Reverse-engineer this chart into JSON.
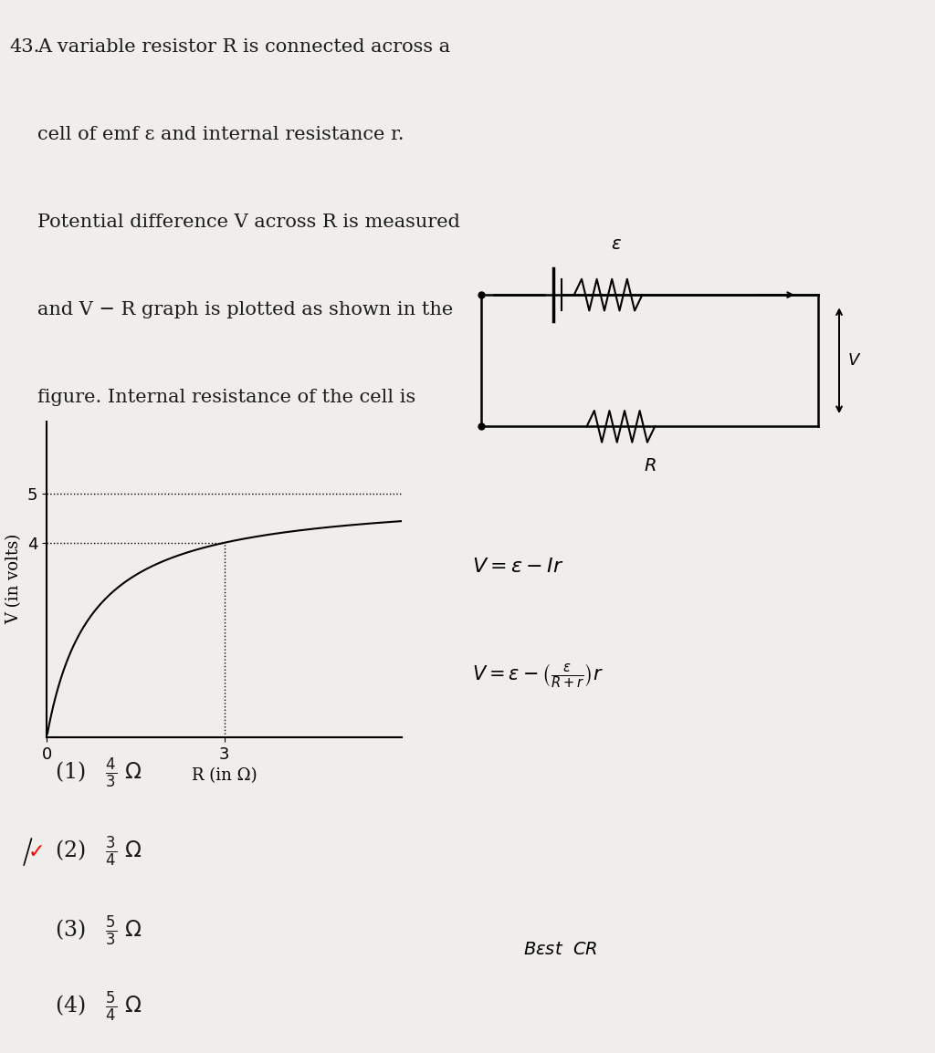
{
  "background_color": "#f0eeea",
  "question_number": "43.",
  "question_text_lines": [
    "A variable resistor R is connected across a",
    "cell of emf ε and internal resistance r.",
    "Potential difference V across R is measured",
    "and V − R graph is plotted as shown in the",
    "figure. Internal resistance of the cell is"
  ],
  "graph": {
    "xlabel": "R (in Ω)",
    "ylabel": "V (in volts)",
    "x_ticks": [
      0,
      3
    ],
    "y_ticks": [
      4,
      5
    ],
    "asymptote_y": 5.0,
    "marked_x": 3,
    "marked_y": 4,
    "xlim": [
      0,
      6
    ],
    "ylim": [
      0,
      6.5
    ]
  },
  "options": [
    "(1)  $\\frac{4}{3}$ Ω",
    "(2)  $\\frac{3}{4}$ Ω",
    "(3)  $\\frac{5}{3}$ Ω",
    "(4)  $\\frac{5}{4}$ Ω"
  ],
  "option_correct": 1,
  "text_color": "#1a1a1a",
  "box_color": "#1a1a1a",
  "font_size_question": 15,
  "font_size_options": 17
}
